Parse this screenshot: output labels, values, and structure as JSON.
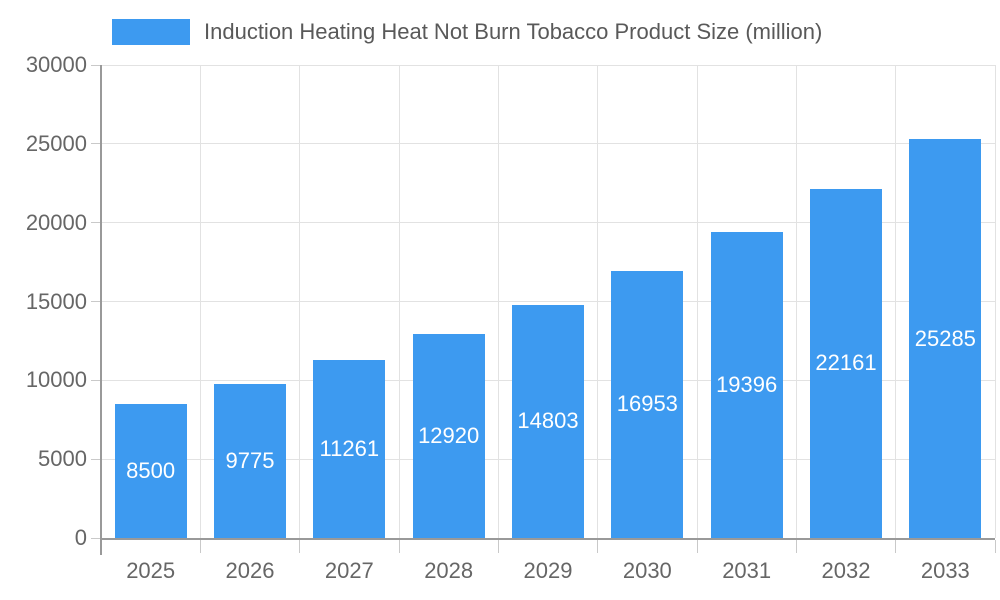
{
  "legend": {
    "label": "Induction Heating Heat Not Burn Tobacco Product Size (million)"
  },
  "chart_data": {
    "type": "bar",
    "title": "Induction Heating Heat Not Burn Tobacco Product Size (million)",
    "categories": [
      "2025",
      "2026",
      "2027",
      "2028",
      "2029",
      "2030",
      "2031",
      "2032",
      "2033"
    ],
    "values": [
      8500,
      9775,
      11261,
      12920,
      14803,
      16953,
      19396,
      22161,
      25285
    ],
    "xlabel": "",
    "ylabel": "",
    "ylim": [
      0,
      30000
    ],
    "yticks": [
      0,
      5000,
      10000,
      15000,
      20000,
      25000,
      30000
    ],
    "grid": true,
    "legend_position": "top-left",
    "value_label_position": "inside-center"
  },
  "colors": {
    "bar": "#3D9AF0",
    "axis_line": "#999999",
    "gridline": "#E2E2E2",
    "tick": "#C9C9C9",
    "axis_text": "#666666",
    "legend_text": "#595959",
    "value_text": "#FFFFFF",
    "background": "#FFFFFF"
  }
}
